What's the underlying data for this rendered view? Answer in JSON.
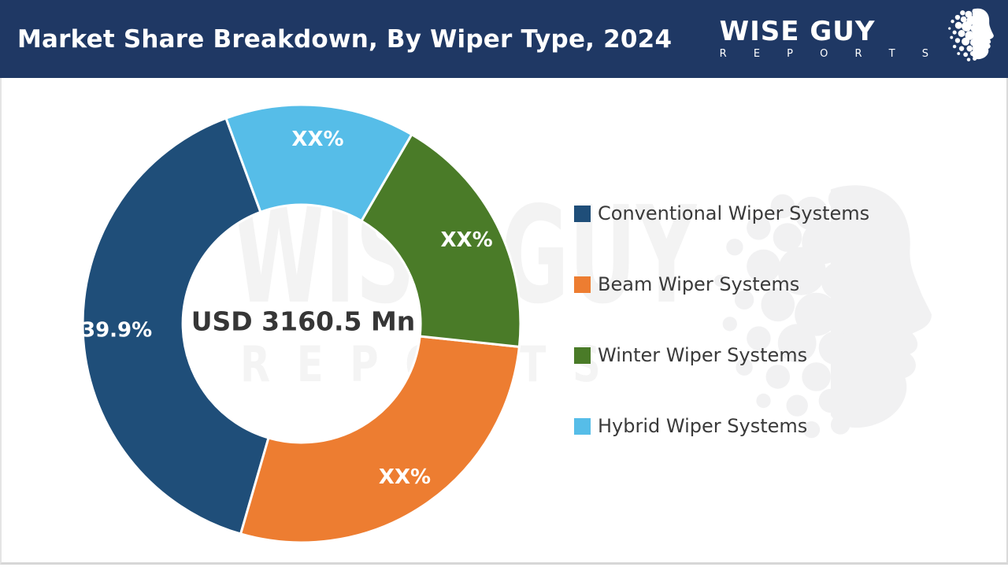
{
  "header": {
    "title": "Market Share Breakdown, By Wiper Type, 2024",
    "bg_color": "#1F3864",
    "logo": {
      "brand_line1": "WISE GUY",
      "brand_line2": "R E P O R T S"
    }
  },
  "chart_data": {
    "type": "pie",
    "subtype": "donut",
    "title": "Market Share Breakdown, By Wiper Type, 2024",
    "center_label": "USD 3160.5 Mn",
    "start_angle_deg": 110.2,
    "direction": "counterclockwise",
    "donut_hole_ratio": 0.54,
    "legend_position": "right",
    "segments": [
      {
        "label": "Conventional Wiper Systems",
        "pct": 39.9,
        "display": "39.9%",
        "color": "#1F4E79"
      },
      {
        "label": "Beam Wiper Systems",
        "pct": 27.8,
        "display": "XX%",
        "color": "#ED7D31"
      },
      {
        "label": "Winter Wiper Systems",
        "pct": 18.3,
        "display": "XX%",
        "color": "#4A7B28"
      },
      {
        "label": "Hybrid Wiper Systems",
        "pct": 14.0,
        "display": "XX%",
        "color": "#56BDE8"
      }
    ]
  },
  "watermark": {
    "line1": "WISE GUY",
    "line2": "REPORTS"
  }
}
